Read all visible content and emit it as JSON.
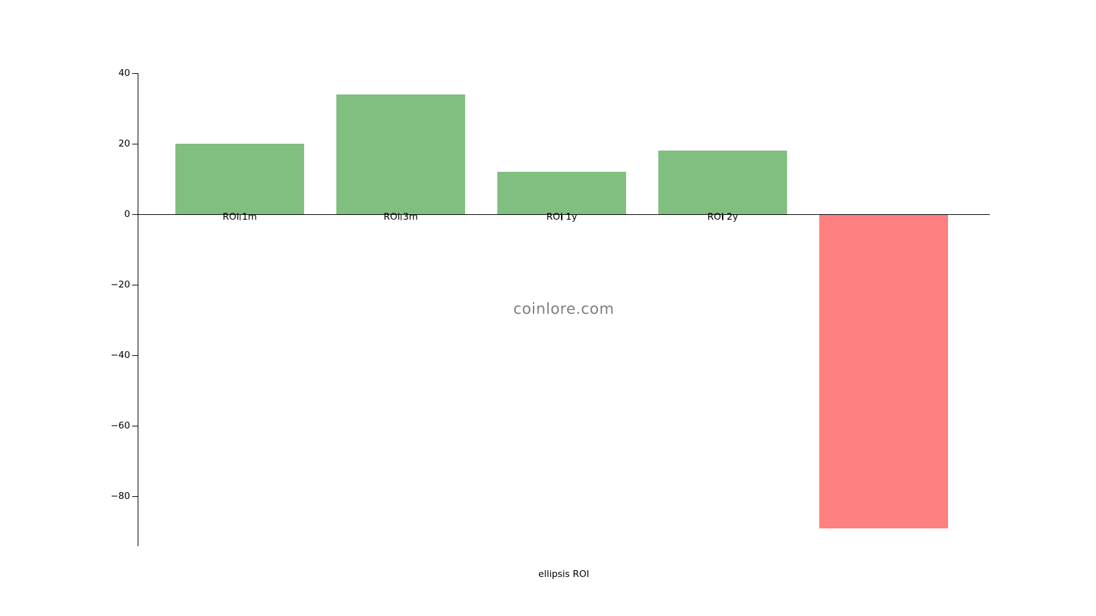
{
  "chart_data": {
    "type": "bar",
    "categories": [
      "ROI 1m",
      "ROI 3m",
      "ROI 1y",
      "ROI 2y",
      ""
    ],
    "values": [
      20,
      34,
      12,
      18,
      -89
    ],
    "title": "",
    "xlabel": "ellipsis ROI",
    "ylabel": "",
    "ylim": [
      -94,
      40
    ],
    "yticks": [
      40,
      20,
      0,
      -20,
      -40,
      -60,
      -80
    ],
    "grid": false,
    "legend": "none",
    "watermark": "coinlore.com",
    "colors": {
      "positive_bar": "#80bf80",
      "negative_bar": "#ff8080",
      "axis": "#000000",
      "watermark": "#7f7f7f"
    }
  }
}
